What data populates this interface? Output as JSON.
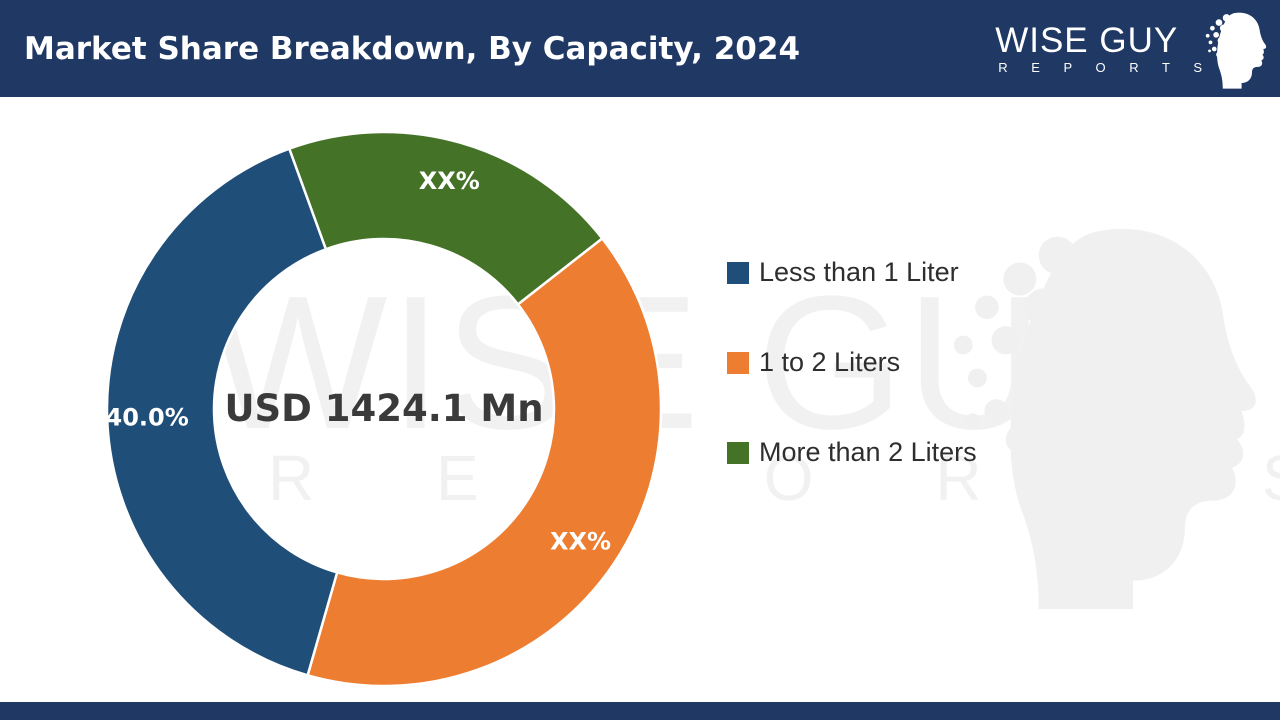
{
  "header": {
    "title": "Market Share Breakdown, By Capacity, 2024",
    "bg_color": "#1f3864",
    "logo": {
      "line1": "WISE GUY",
      "line2": "R E P O R T S"
    }
  },
  "watermark": {
    "line1": "WISE GUY",
    "line2": "R E P O R T S"
  },
  "chart_data": {
    "type": "pie",
    "subtype": "donut",
    "title": "Market Share Breakdown, By Capacity, 2024",
    "center_label": "USD 1424.1 Mn",
    "start_angle_deg": 110,
    "direction": "clockwise",
    "legend_position": "right",
    "slices": [
      {
        "label": "More than 2 Liters",
        "value_pct": 20,
        "display_label": "XX%",
        "color": "#447227"
      },
      {
        "label": "1 to 2 Liters",
        "value_pct": 40,
        "display_label": "XX%",
        "color": "#ed7d31"
      },
      {
        "label": "Less than 1 Liter",
        "value_pct": 40,
        "display_label": "40.0%",
        "color": "#1f4e79"
      }
    ]
  },
  "legend": {
    "items": [
      {
        "label": "Less than 1 Liter",
        "color": "#1f4e79"
      },
      {
        "label": "1 to 2 Liters",
        "color": "#ed7d31"
      },
      {
        "label": "More than 2 Liters",
        "color": "#447227"
      }
    ]
  },
  "footer": {
    "bg_color": "#1f3864"
  }
}
